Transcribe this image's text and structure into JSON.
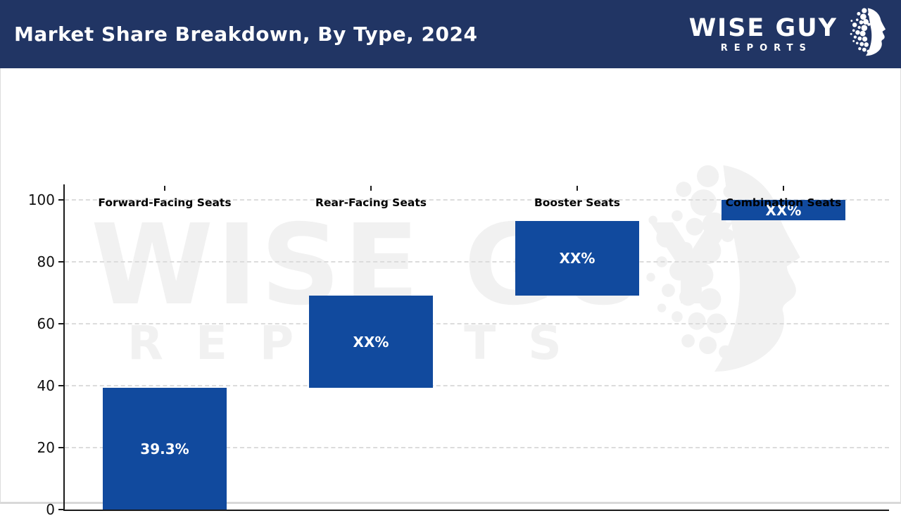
{
  "header": {
    "title": "Market Share Breakdown, By Type, 2024",
    "logo": {
      "line1": "WISE GUY",
      "line2": "REPORTS"
    }
  },
  "watermark": {
    "line1": "WISE GUY",
    "line2": "REPORTS"
  },
  "chart_data": {
    "type": "bar",
    "variant": "waterfall",
    "title": "Market Share Breakdown, By Type, 2024",
    "categories": [
      "Forward-Facing Seats",
      "Rear-Facing Seats",
      "Booster Seats",
      "Combination Seats"
    ],
    "segments": [
      {
        "category": "Forward-Facing Seats",
        "start": 0,
        "end": 39.3,
        "label": "39.3%"
      },
      {
        "category": "Rear-Facing Seats",
        "start": 39.3,
        "end": 69.0,
        "label": "XX%"
      },
      {
        "category": "Booster Seats",
        "start": 69.0,
        "end": 93.3,
        "label": "XX%"
      },
      {
        "category": "Combination Seats",
        "start": 93.3,
        "end": 100.0,
        "label": "XX%"
      }
    ],
    "ylim": [
      0,
      105
    ],
    "yticks": [
      0,
      20,
      40,
      60,
      80,
      100
    ],
    "grid": "horizontal-dashed",
    "legend": "none",
    "xlabel": "",
    "ylabel": ""
  },
  "colors": {
    "header_bg": "#213564",
    "bar": "#114a9e",
    "bar_label": "#ffffff",
    "grid": "#dcdcdc",
    "axis": "#1a1a1a",
    "watermark": "#f1f1f1"
  }
}
